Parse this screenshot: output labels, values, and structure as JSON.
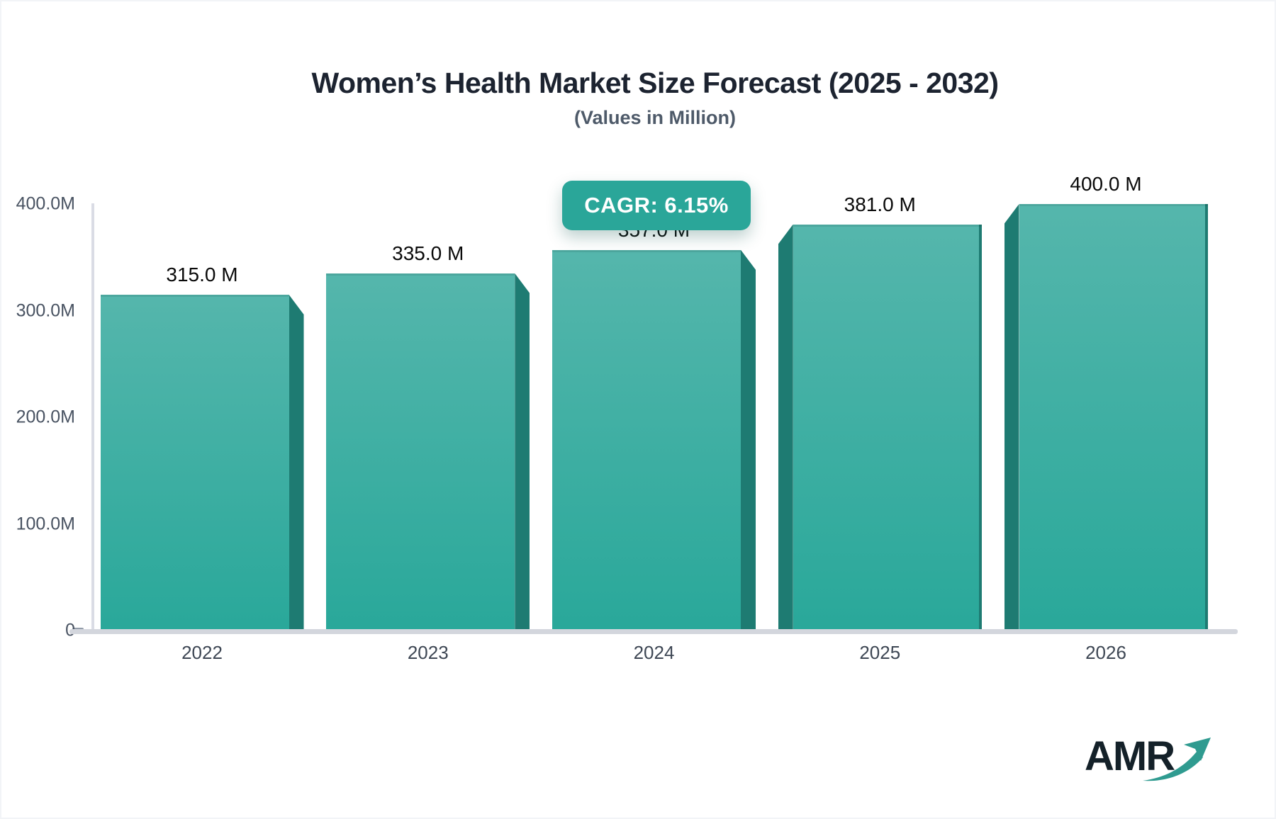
{
  "header": {
    "title": "Women’s Health Market Size Forecast (2025 - 2032)",
    "subtitle": "(Values in Million)"
  },
  "badge": {
    "label": "CAGR: 6.15%",
    "bg": "#2aa699",
    "text_color": "#ffffff"
  },
  "chart_data": {
    "type": "bar",
    "title": "Women’s Health Market Size Forecast (2025 - 2032)",
    "subtitle": "(Values in Million)",
    "unit": "Million",
    "categories": [
      "2022",
      "2023",
      "2024",
      "2025",
      "2026"
    ],
    "values": [
      315.0,
      335.0,
      357.0,
      381.0,
      400.0
    ],
    "value_labels": [
      "315.0 M",
      "335.0 M",
      "357.0 M",
      "381.0 M",
      "400.0 M"
    ],
    "annotation": "CAGR: 6.15%",
    "ylim": [
      0,
      400
    ],
    "yticks": [
      400,
      300,
      200,
      100,
      0
    ],
    "ytick_labels": [
      "400.0M",
      "300.0M",
      "200.0M",
      "100.0M",
      "0"
    ],
    "grid": false,
    "legend": null,
    "bar_colors": {
      "top": "#55b6ac",
      "bottom": "#29a89a",
      "side": "#1e7b72"
    },
    "side_direction": [
      "right",
      "right",
      "right",
      "left",
      "left"
    ]
  },
  "logo": {
    "text": "AMR",
    "text_color": "#142129",
    "arrow_color": "#2f9b90"
  }
}
